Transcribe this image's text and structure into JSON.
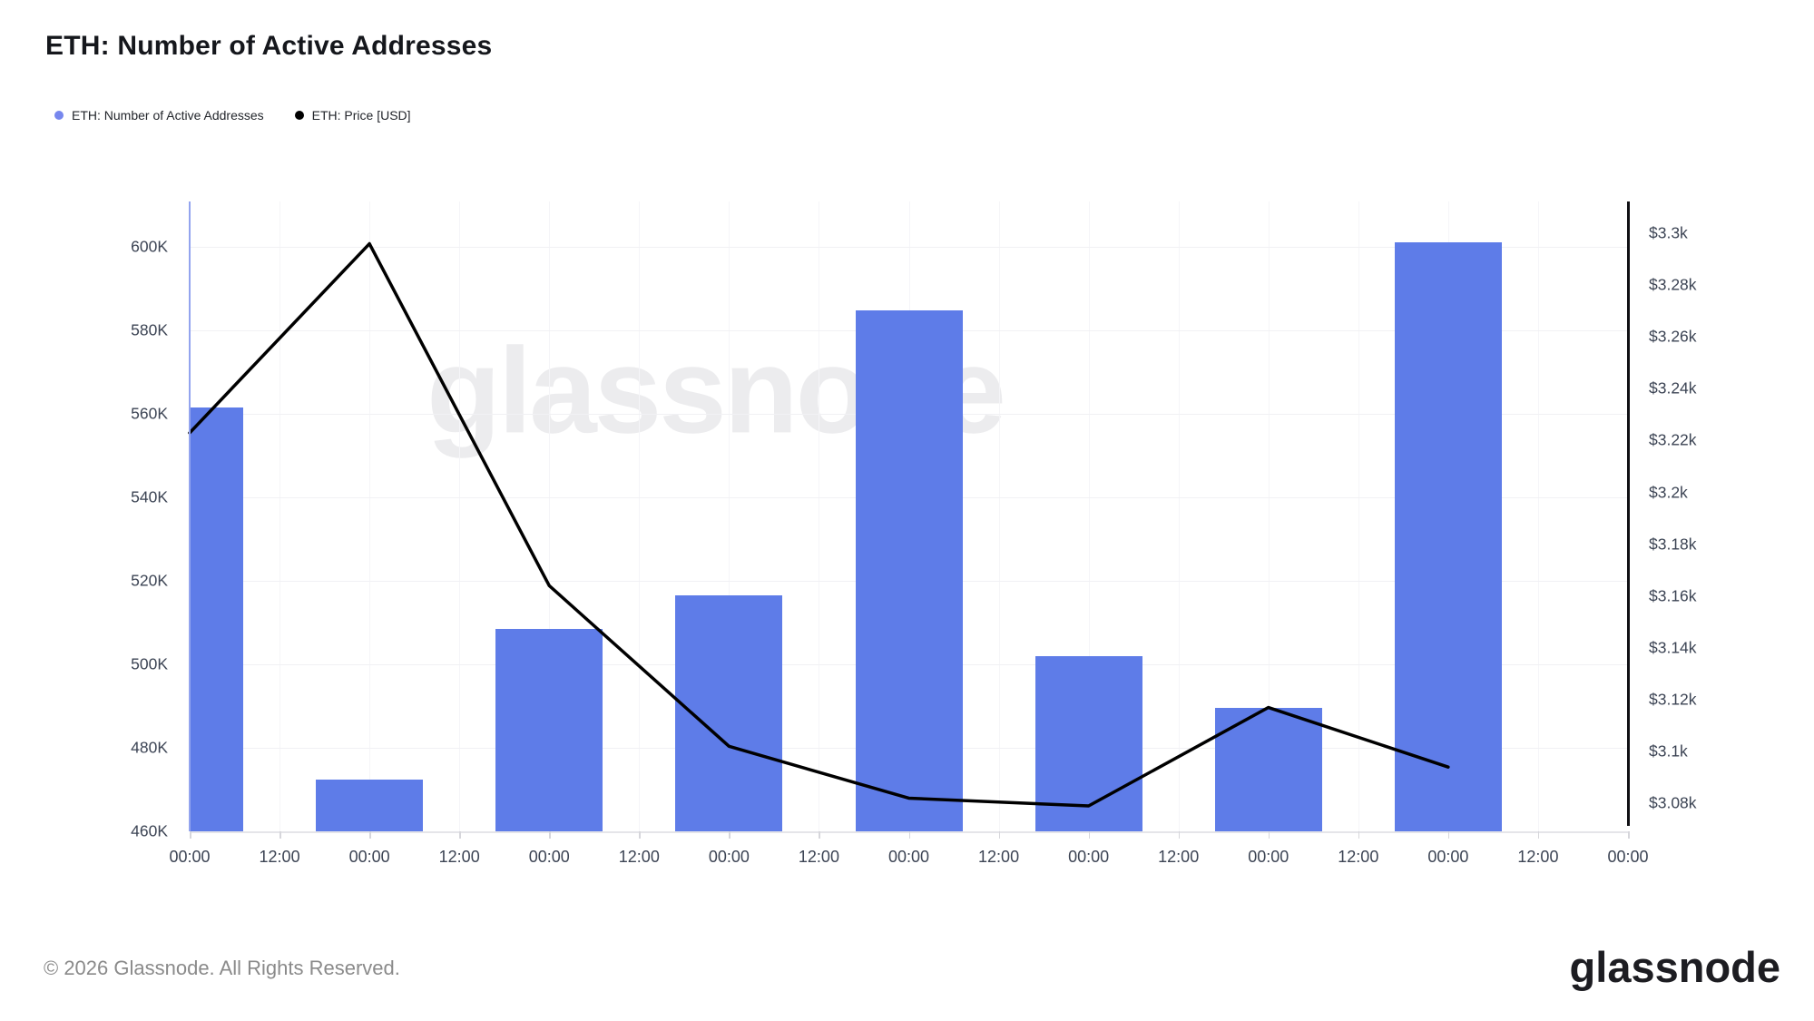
{
  "header": {
    "title": "ETH: Number of Active Addresses"
  },
  "legend": {
    "items": [
      {
        "label": "ETH: Number of Active Addresses",
        "color": "#7787ee"
      },
      {
        "label": "ETH: Price [USD]",
        "color": "#000000"
      }
    ]
  },
  "watermark": {
    "text": "glassnode"
  },
  "footer": {
    "copyright": "© 2026 Glassnode. All Rights Reserved.",
    "logo_text": "glassnode"
  },
  "chart_data": {
    "type": "combo",
    "title": "ETH: Number of Active Addresses",
    "x_tick_labels": [
      "00:00",
      "12:00",
      "00:00",
      "12:00",
      "00:00",
      "12:00",
      "00:00",
      "12:00",
      "00:00",
      "12:00",
      "00:00",
      "12:00",
      "00:00",
      "12:00",
      "00:00",
      "12:00",
      "00:00"
    ],
    "series": [
      {
        "name": "ETH: Number of Active Addresses",
        "type": "bar",
        "axis": "left",
        "color": "#5e7ce8",
        "x_tick_index": [
          0,
          2,
          4,
          6,
          8,
          10,
          12,
          14
        ],
        "values": [
          561500,
          472500,
          508500,
          516500,
          584800,
          502000,
          489500,
          601000
        ]
      },
      {
        "name": "ETH: Price [USD]",
        "type": "line",
        "axis": "right",
        "color": "#000000",
        "x_tick_index": [
          0,
          2,
          4,
          6,
          8,
          10,
          12,
          14
        ],
        "values_usd": [
          3223,
          3296,
          3164,
          3102,
          3082,
          3079,
          3117,
          3094
        ]
      }
    ],
    "left_axis": {
      "ticks": [
        {
          "label": "600K",
          "value": 600000
        },
        {
          "label": "580K",
          "value": 580000
        },
        {
          "label": "560K",
          "value": 560000
        },
        {
          "label": "540K",
          "value": 540000
        },
        {
          "label": "520K",
          "value": 520000
        },
        {
          "label": "500K",
          "value": 500000
        },
        {
          "label": "480K",
          "value": 480000
        },
        {
          "label": "460K",
          "value": 460000
        }
      ],
      "min": 460000,
      "max": 610870
    },
    "right_axis": {
      "ticks": [
        {
          "label": "$3.3k",
          "value": 3300
        },
        {
          "label": "$3.28k",
          "value": 3280
        },
        {
          "label": "$3.26k",
          "value": 3260
        },
        {
          "label": "$3.24k",
          "value": 3240
        },
        {
          "label": "$3.22k",
          "value": 3220
        },
        {
          "label": "$3.2k",
          "value": 3200
        },
        {
          "label": "$3.18k",
          "value": 3180
        },
        {
          "label": "$3.16k",
          "value": 3160
        },
        {
          "label": "$3.14k",
          "value": 3140
        },
        {
          "label": "$3.12k",
          "value": 3120
        },
        {
          "label": "$3.1k",
          "value": 3100
        },
        {
          "label": "$3.08k",
          "value": 3080
        }
      ],
      "min": 3069.2,
      "max": 3312.3
    },
    "grid": "horizontal gridlines + faint vertical gridlines",
    "legend_position": "top-left"
  }
}
